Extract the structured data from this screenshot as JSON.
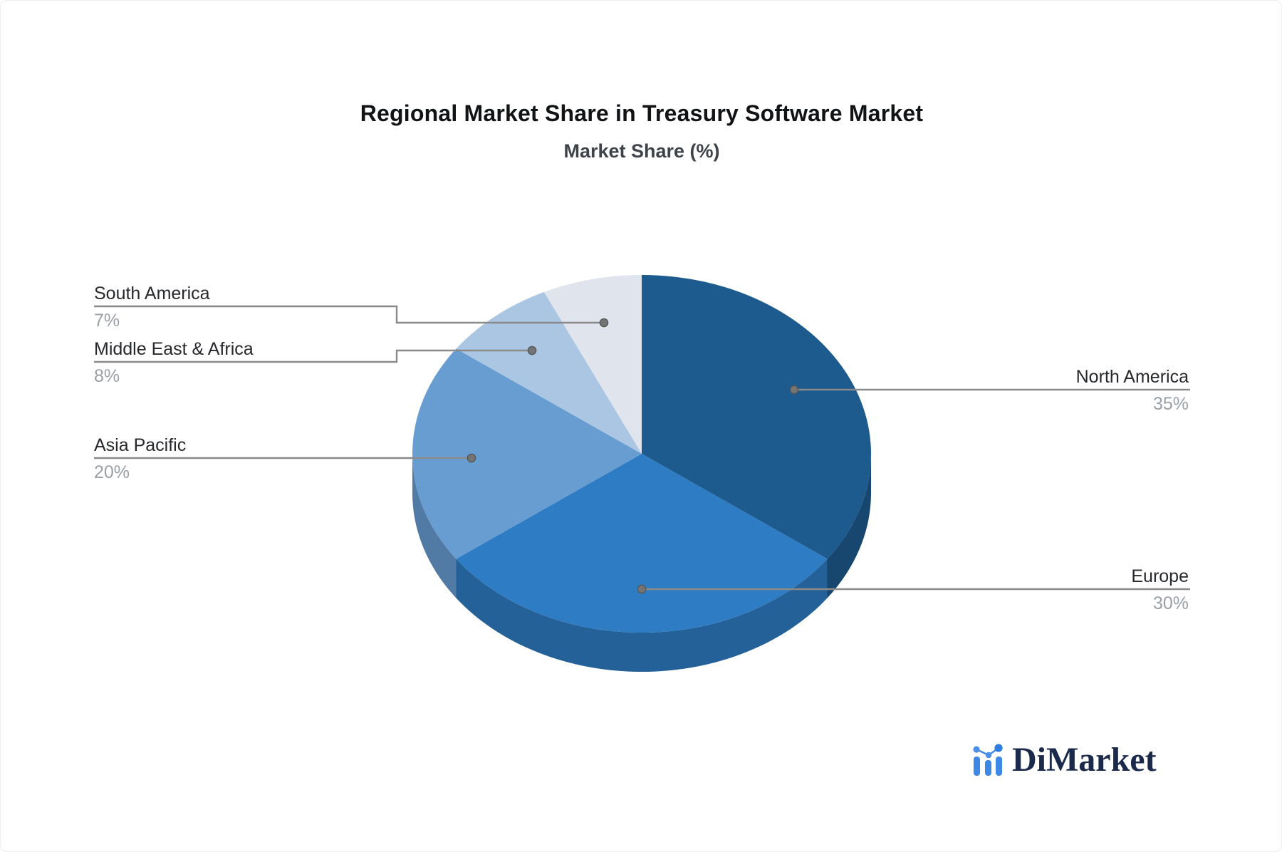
{
  "chart_data": {
    "type": "pie",
    "title": "Regional Market Share in Treasury Software Market",
    "subtitle": "Market Share (%)",
    "unit": "%",
    "three_d": true,
    "start_angle_deg": 0,
    "direction": "clockwise",
    "legend_position": "callout-labels",
    "slices": [
      {
        "label": "North America",
        "value": 35,
        "pct_label": "35%",
        "color": "#1d5a8e"
      },
      {
        "label": "Europe",
        "value": 30,
        "pct_label": "30%",
        "color": "#2e7cc3"
      },
      {
        "label": "Asia Pacific",
        "value": 20,
        "pct_label": "20%",
        "color": "#689dd2"
      },
      {
        "label": "Middle East & Africa",
        "value": 8,
        "pct_label": "8%",
        "color": "#abc6e2"
      },
      {
        "label": "South America",
        "value": 7,
        "pct_label": "7%",
        "color": "#dfe4ed"
      }
    ]
  },
  "footer": {
    "brand": "DiMarket"
  },
  "colors": {
    "connector_line": "#8a8a8a",
    "connector_dot": "#757575",
    "connector_dot_ring": "#565656",
    "label_text": "#26282b",
    "pct_text": "#9aa0a6",
    "title_text": "#121315",
    "subtitle_text": "#3e434a",
    "logo_blue": "#3d87e6",
    "logo_navy": "#1b2a4b"
  }
}
